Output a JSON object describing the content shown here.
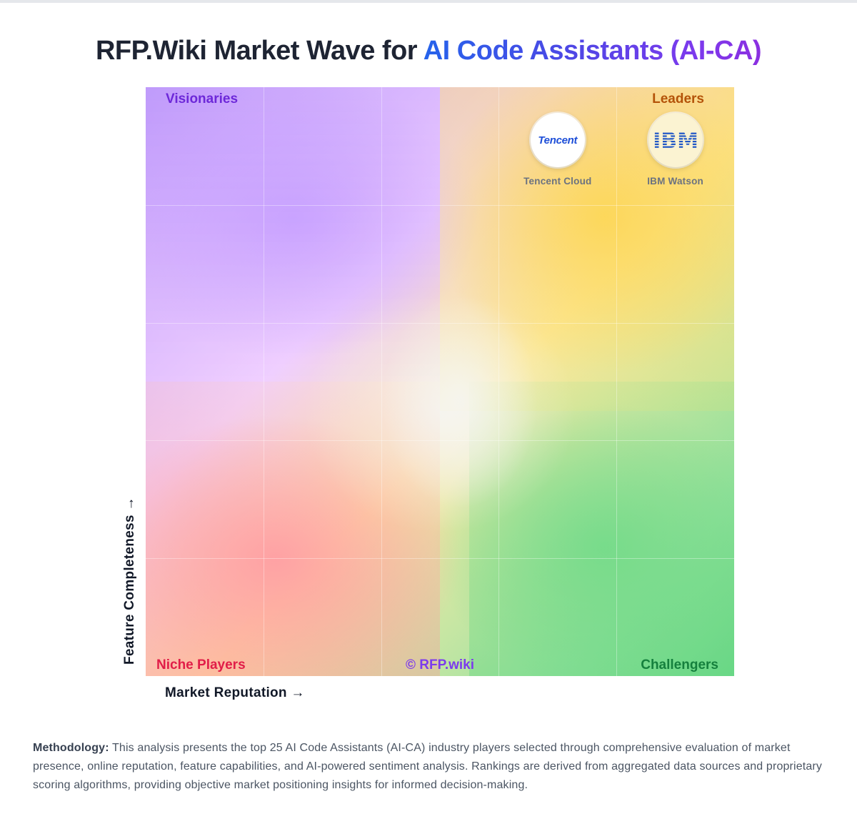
{
  "title": {
    "prefix": "RFP.Wiki Market Wave for ",
    "highlight": "AI Code Assistants (AI-CA)"
  },
  "chart_data": {
    "type": "scatter",
    "title": "RFP.Wiki Market Wave for AI Code Assistants (AI-CA)",
    "xlabel": "Market Reputation →",
    "ylabel": "Feature Completeness →",
    "xlim": [
      0,
      100
    ],
    "ylim": [
      0,
      100
    ],
    "grid": true,
    "quadrants": {
      "top_left": "Visionaries",
      "top_right": "Leaders",
      "bottom_left": "Niche Players",
      "bottom_right": "Challengers"
    },
    "watermark": "© RFP.wiki",
    "points": [
      {
        "name": "Tencent Cloud",
        "logo_text": "Tencent",
        "icon": "tencent-logo-icon",
        "x": 70,
        "y": 91
      },
      {
        "name": "IBM Watson",
        "logo_text": "IBM",
        "icon": "ibm-logo-icon",
        "x": 90,
        "y": 91
      }
    ]
  },
  "methodology": {
    "label": "Methodology:",
    "text": " This analysis presents the top 25 AI Code Assistants (AI-CA) industry players selected through comprehensive evaluation of market presence, online reputation, feature capabilities, and AI-powered sentiment analysis. Rankings are derived from aggregated data sources and proprietary scoring algorithms, providing objective market positioning insights for informed decision-making."
  },
  "colors": {
    "visionaries": "#6d28d9",
    "leaders": "#b45309",
    "niche": "#e11d48",
    "challengers": "#15803d",
    "title_gradient_start": "#2563eb",
    "title_gradient_end": "#8b2fe0"
  }
}
